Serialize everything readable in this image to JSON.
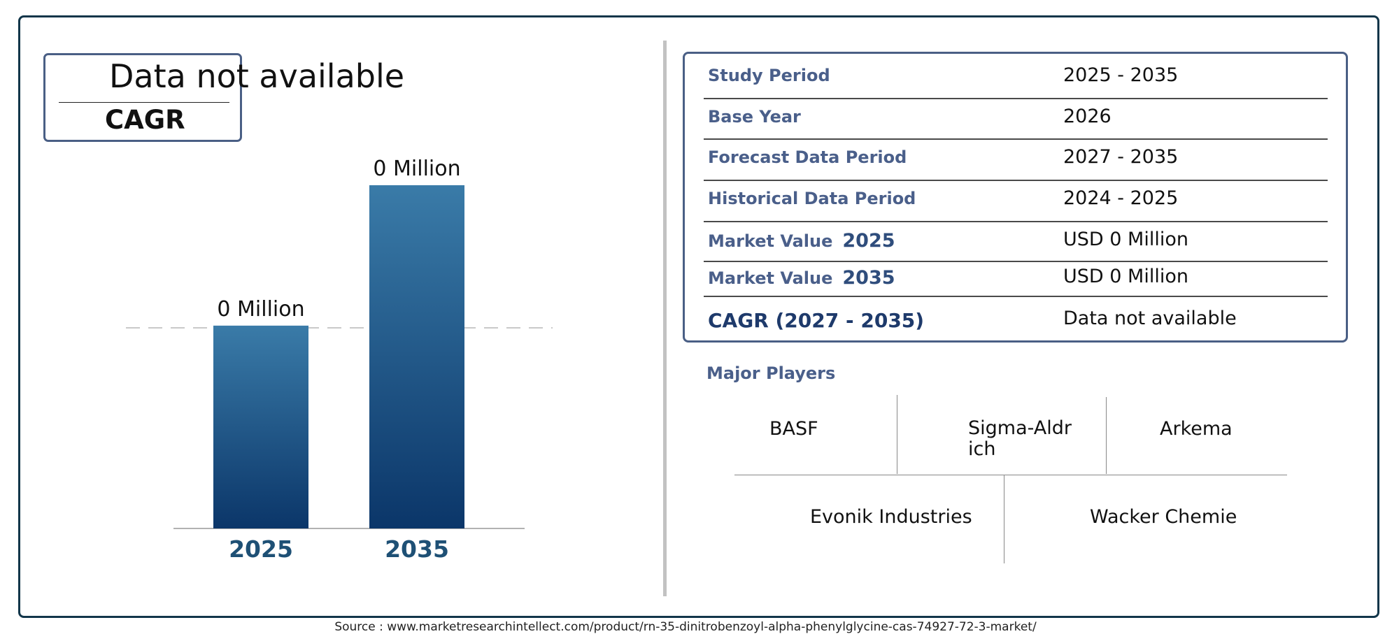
{
  "cagr_badge": {
    "value": "Data not available",
    "label": "CAGR"
  },
  "chart_data": {
    "type": "bar",
    "categories": [
      "2025",
      "2035"
    ],
    "values": [
      0,
      0
    ],
    "bar_labels": [
      "0 Million",
      "0 Million"
    ],
    "bar_levels": [
      0.52,
      0.88
    ],
    "colors": {
      "bar_top": "#3a7ba8",
      "bar_bottom": "#0b3669",
      "category_label": "#1e5075"
    },
    "grid": false,
    "reference_line": "dashed"
  },
  "info_table": {
    "rows": [
      {
        "key": "Study Period",
        "value": "2025 - 2035"
      },
      {
        "key": "Base Year",
        "value": "2026"
      },
      {
        "key": "Forecast Data Period",
        "value": "2027 - 2035"
      },
      {
        "key": "Historical Data Period",
        "value": "2024 - 2025"
      },
      {
        "key": "Market Value",
        "year": "2025",
        "value": "USD 0 Million"
      },
      {
        "key": "Market Value",
        "year": "2035",
        "value": "USD 0 Million"
      },
      {
        "key": "CAGR (2027 - 2035)",
        "value": "Data not available"
      }
    ]
  },
  "players": {
    "title": "Major Players",
    "items": [
      "BASF",
      "Sigma-Aldrich",
      "Arkema",
      "Evonik Industries",
      "Wacker Chemie"
    ]
  },
  "source": "Source : www.marketresearchintellect.com/product/rn-35-dinitrobenzoyl-alpha-phenylglycine-cas-74927-72-3-market/",
  "colors": {
    "frame": "#12364a",
    "box_border": "#4a5f85",
    "key_text": "#4a5f8a"
  }
}
